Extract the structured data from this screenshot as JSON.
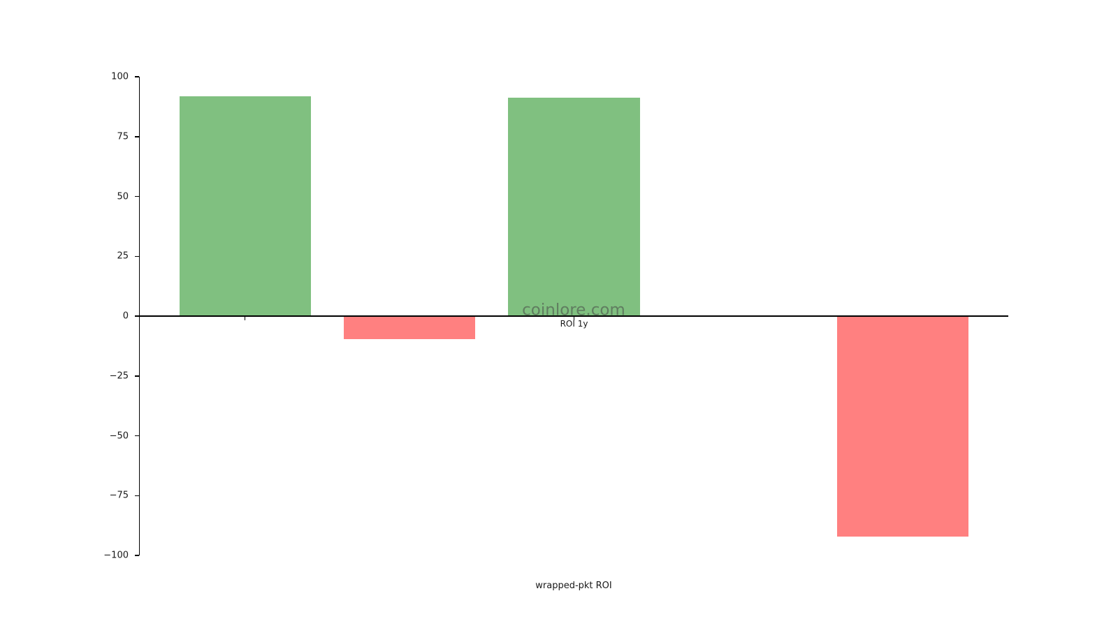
{
  "page": {
    "background_color": "#ffffff"
  },
  "chart_data": {
    "type": "bar",
    "title": "",
    "xlabel": "wrapped-pkt ROI",
    "ylabel": "",
    "watermark": "coinlore.com",
    "x": [
      0,
      1,
      2,
      3,
      4
    ],
    "values": [
      91.8,
      -9.3,
      91.3,
      0,
      -91.8
    ],
    "xtick_labels": [
      "",
      "",
      "ROI 1y",
      "",
      ""
    ],
    "visible_xticks": [
      0,
      2
    ],
    "yticks": [
      -100,
      -75,
      -50,
      -25,
      0,
      25,
      50,
      75,
      100
    ],
    "ylim": [
      -100,
      100
    ],
    "xlim": [
      -0.64,
      4.64
    ],
    "bar_width": 0.8,
    "positive_color": "#80c080",
    "negative_color": "#ff8080",
    "axis_color": "#000000",
    "grid": false,
    "legend": null
  }
}
